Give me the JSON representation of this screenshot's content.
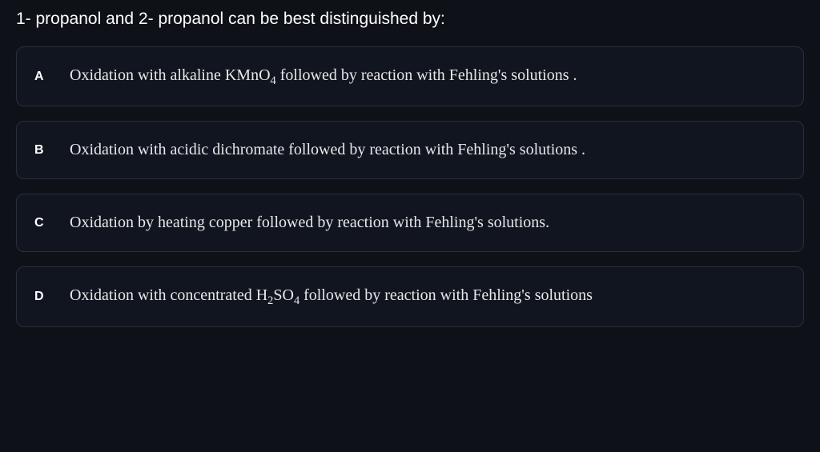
{
  "question": {
    "text": "1- propanol and 2- propanol can be best distinguished by:",
    "fontsize": 21,
    "color": "#ffffff"
  },
  "options": [
    {
      "letter": "A",
      "html": "Oxidation with alkaline KMnO<sub>4</sub> followed by reaction with Fehling's solutions ."
    },
    {
      "letter": "B",
      "html": "Oxidation with acidic dichromate followed by reaction with Fehling's solutions ."
    },
    {
      "letter": "C",
      "html": "Oxidation by heating copper followed by reaction with Fehling's solutions."
    },
    {
      "letter": "D",
      "html": "Oxidation with concentrated H<sub>2</sub>SO<sub>4</sub> followed by reaction with Fehling's solutions"
    }
  ],
  "styling": {
    "background_color": "#0e1117",
    "option_background": "#111520",
    "option_border_color": "#2a2f3a",
    "option_border_radius": 10,
    "option_text_color": "#e8e8e8",
    "option_text_fontsize": 20,
    "option_letter_color": "#ffffff",
    "option_letter_fontsize": 16,
    "font_family_question": "Arial",
    "font_family_option": "Georgia"
  }
}
